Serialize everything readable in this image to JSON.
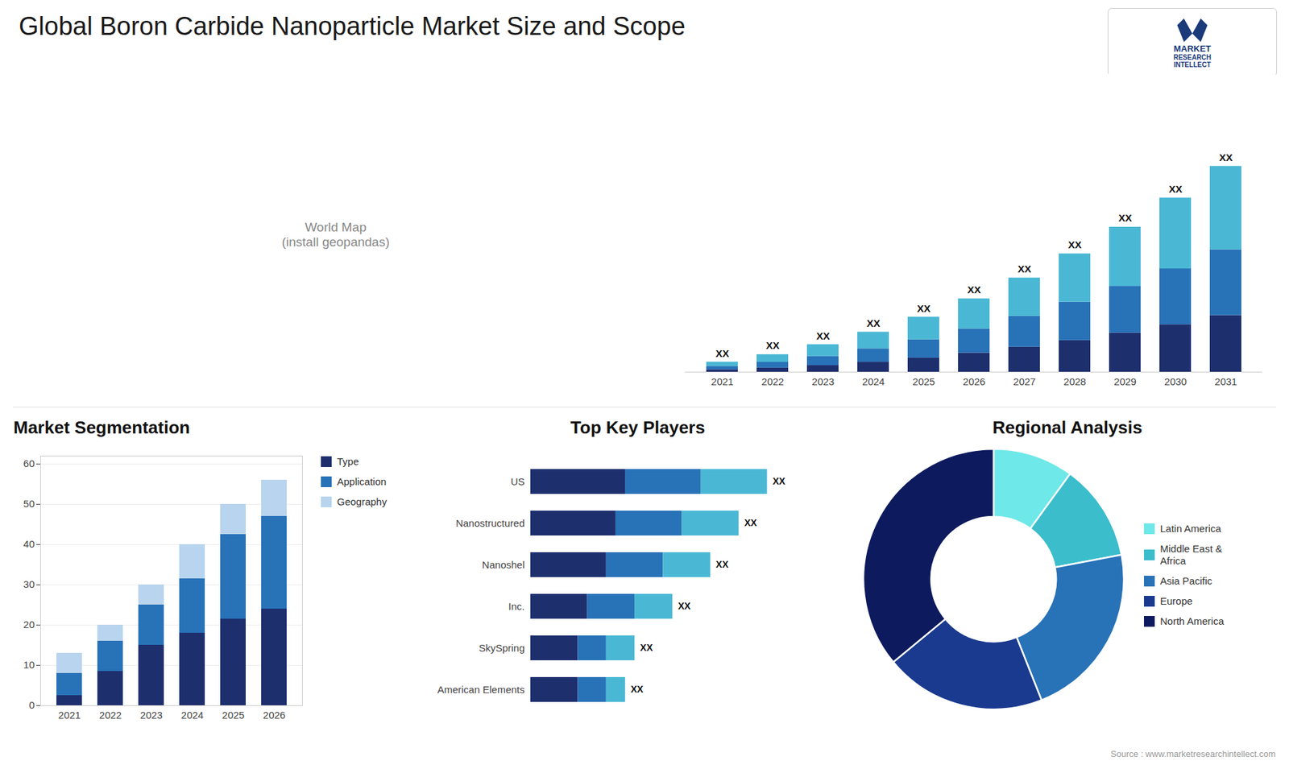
{
  "title": "Global Boron Carbide Nanoparticle Market Size and Scope",
  "annotations": [
    "World Map\n(install geopandas)",
    "MARKET",
    "RESEARCH\nINTELLECT",
    "Source : www.marketresearchintellect.com"
  ],
  "chart_data": [
    {
      "type": "bar",
      "stacked": true,
      "categories": [
        "2021",
        "2022",
        "2023",
        "2024",
        "2025",
        "2026",
        "2027",
        "2028",
        "2029",
        "2030",
        "2031"
      ],
      "series": [
        {
          "color": "#1e2f6e",
          "values": [
            1.5,
            2.5,
            4.0,
            6.0,
            8.5,
            11.5,
            15.0,
            19.0,
            23.5,
            28.5,
            34.0
          ]
        },
        {
          "color": "#2872b8",
          "values": [
            2.0,
            3.5,
            5.5,
            8.0,
            11.0,
            14.5,
            18.5,
            23.0,
            28.0,
            33.5,
            39.5
          ]
        },
        {
          "color": "#4ab8d4",
          "values": [
            2.5,
            4.5,
            7.0,
            10.0,
            13.5,
            18.0,
            23.0,
            29.0,
            35.5,
            42.5,
            50.0
          ]
        }
      ],
      "ylim": [
        0,
        166.725
      ],
      "tick_labels": "x",
      "annotations": [
        "XX",
        "XX",
        "XX",
        "XX",
        "XX",
        "XX",
        "XX",
        "XX",
        "XX",
        "XX",
        "XX"
      ]
    },
    {
      "type": "bar",
      "stacked": true,
      "title": "Market Segmentation",
      "categories": [
        "2021",
        "2022",
        "2023",
        "2024",
        "2025",
        "2026"
      ],
      "series": [
        {
          "name": "Type",
          "color": "#1e2f6e",
          "values": [
            2.5,
            8.5,
            15.0,
            18.0,
            21.5,
            24.0
          ]
        },
        {
          "name": "Application",
          "color": "#2872b8",
          "values": [
            5.5,
            7.5,
            10.0,
            13.5,
            21.0,
            23.0
          ]
        },
        {
          "name": "Geography",
          "color": "#b8d4ee",
          "values": [
            5.0,
            4.0,
            5.0,
            8.5,
            7.5,
            9.0
          ]
        }
      ],
      "ylim": [
        0,
        62
      ],
      "yticks": [
        0,
        10,
        20,
        30,
        40,
        50,
        60
      ],
      "grid": true,
      "legend": "right"
    },
    {
      "type": "bar",
      "stacked": true,
      "orientation": "horizontal",
      "title": "Top Key Players",
      "categories": [
        "US",
        "Nanostructured",
        "Nanoshel",
        "Inc.",
        "SkySpring",
        "American Elements"
      ],
      "series": [
        {
          "color": "#1e2f6e",
          "values": [
            5.0,
            4.5,
            4.0,
            3.0,
            2.5,
            2.5
          ]
        },
        {
          "color": "#2872b8",
          "values": [
            4.0,
            3.5,
            3.0,
            2.5,
            1.5,
            1.5
          ]
        },
        {
          "color": "#4ab8d4",
          "values": [
            3.5,
            3.0,
            2.5,
            2.0,
            1.5,
            1.0
          ]
        }
      ],
      "xlim": [
        0,
        15.25
      ],
      "tick_labels": "y",
      "annotations": [
        "XX",
        "XX",
        "XX",
        "XX",
        "XX",
        "XX"
      ]
    },
    {
      "type": "pie",
      "title": "Regional Analysis",
      "categories": [
        "Latin America",
        "Middle East &\nAfrica",
        "Asia Pacific",
        "Europe",
        "North America"
      ],
      "values": [
        10,
        12,
        22,
        20,
        36
      ],
      "colors": [
        "#6ee8e8",
        "#3bbdcc",
        "#2872b8",
        "#1a3a8f",
        "#0d1a5e"
      ],
      "legend": "right"
    }
  ]
}
